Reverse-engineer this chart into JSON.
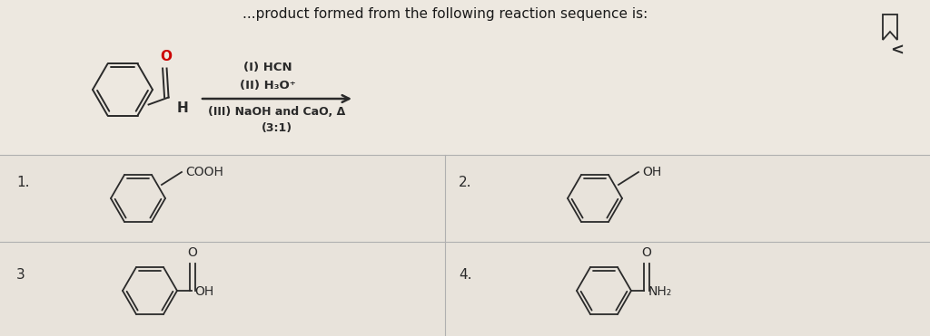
{
  "bg_top": "#f0ece4",
  "bg_options": "#e8e4dc",
  "bg_white": "#f5f3ef",
  "line_color": "#cccccc",
  "text_color": "#1a1a1a",
  "dark_color": "#2a2a2a",
  "red_color": "#cc0000",
  "title_text": "product formed from the following reaction sequence is:",
  "step1": "(I) HCN",
  "step2": "(II) H₃O⁺",
  "step3": "(III) NaOH and CaO, Δ",
  "step4": "(3:1)",
  "font_size_title": 11,
  "font_size_option_num": 11,
  "font_size_label": 10
}
